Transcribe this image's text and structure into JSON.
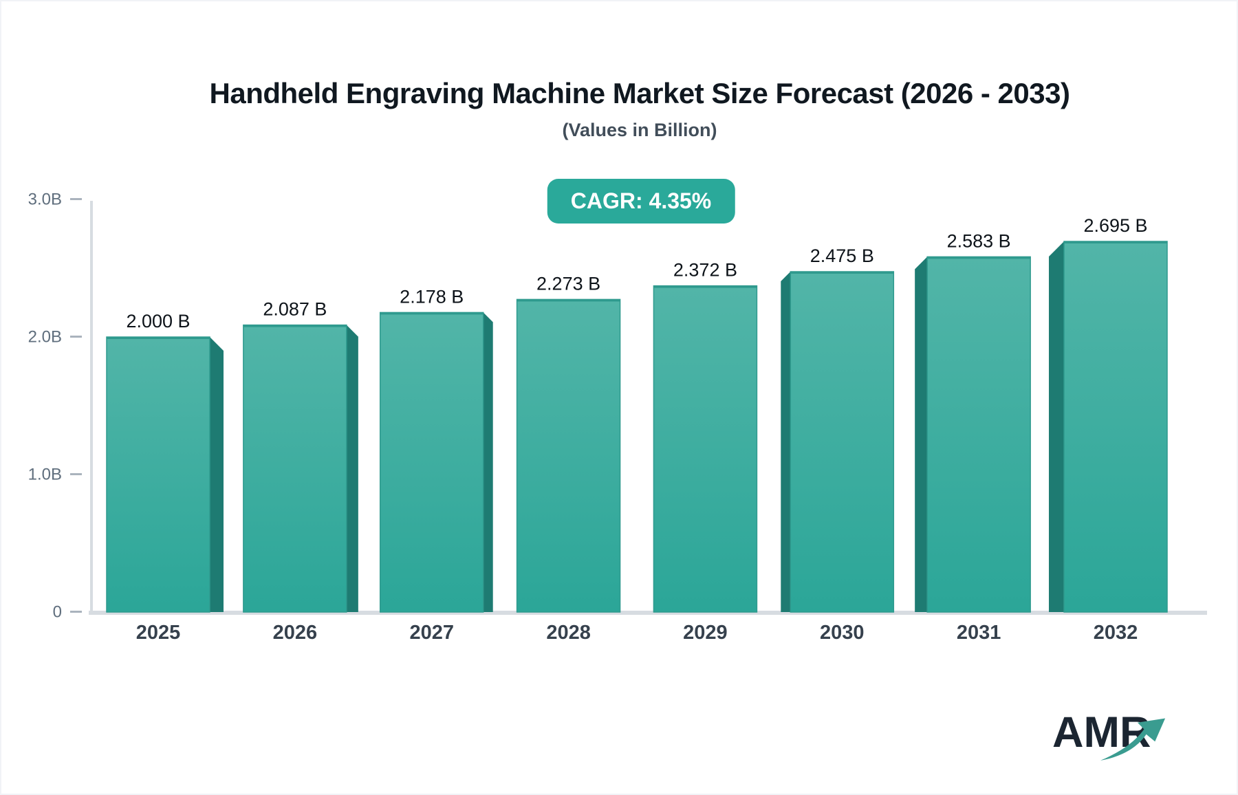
{
  "header": {
    "title": "Handheld Engraving Machine Market Size Forecast (2026 - 2033)",
    "subtitle": "(Values in Billion)",
    "cagr_label": "CAGR: 4.35%"
  },
  "logo": {
    "text": "AMR"
  },
  "colors": {
    "badge_bg": "#2aa99a",
    "bar_face_top": "#52b5a8",
    "bar_face_bottom": "#2ba698",
    "bar_face_outline": "#2f9a8e",
    "bar_side": "#1e7b72",
    "axis_line": "#d7dce1",
    "tick": "#aab3bd",
    "axis_text": "#5f6e7d",
    "year_text": "#36414d",
    "value_text": "#0d1319",
    "logo_text": "#1b2531",
    "logo_arrow": "#3a9c90"
  },
  "chart_data": {
    "type": "bar",
    "title": "Handheld Engraving Machine Market Size Forecast (2026 - 2033)",
    "subtitle": "(Values in Billion)",
    "cagr": "CAGR: 4.35%",
    "categories": [
      "2025",
      "2026",
      "2027",
      "2028",
      "2029",
      "2030",
      "2031",
      "2032"
    ],
    "values": [
      2.0,
      2.087,
      2.178,
      2.273,
      2.372,
      2.475,
      2.583,
      2.695
    ],
    "value_labels": [
      "2.000 B",
      "2.087 B",
      "2.178 B",
      "2.273 B",
      "2.372 B",
      "2.475 B",
      "2.583 B",
      "2.695 B"
    ],
    "ylim": [
      0,
      3.0
    ],
    "yticks": [
      {
        "value": 0,
        "label": "0"
      },
      {
        "value": 1,
        "label": "1.0B"
      },
      {
        "value": 2,
        "label": "2.0B"
      },
      {
        "value": 3,
        "label": "3.0B"
      }
    ],
    "grid": "off",
    "legend": "none"
  }
}
